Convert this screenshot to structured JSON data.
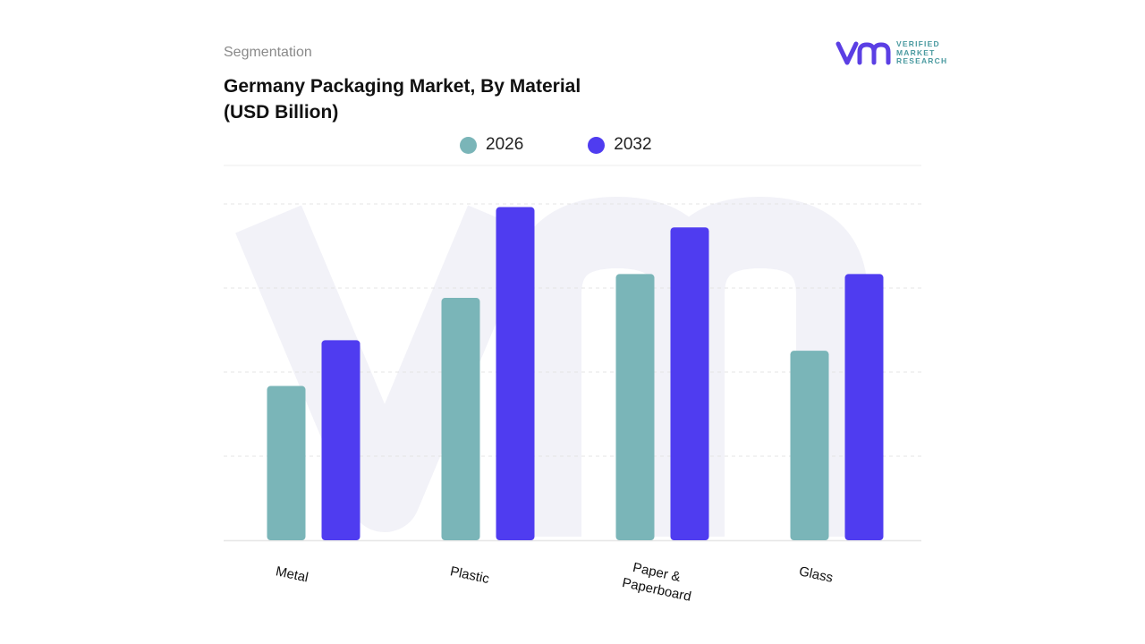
{
  "header": {
    "segment_label": "Segmentation",
    "title_line1": "Germany Packaging Market, By Material",
    "title_line2": "(USD Billion)"
  },
  "logo": {
    "line1": "VERIFIED",
    "line2": "MARKET",
    "line3": "RESEARCH",
    "icon": "vmr-logo-icon",
    "colors": {
      "mark": "#5b3fe4",
      "text": "#4a9aa0"
    }
  },
  "colors": {
    "series_2026": "#7ab5b8",
    "series_2032": "#4f3cf0",
    "grid": "#e4e4e4",
    "watermark": "#f2f2f8"
  },
  "chart_data": {
    "type": "bar",
    "categories": [
      "Metal",
      "Plastic",
      "Paper & Paperboard",
      "Glass"
    ],
    "series": [
      {
        "name": "2026",
        "values": [
          17.5,
          27.5,
          30.2,
          21.5
        ]
      },
      {
        "name": "2032",
        "values": [
          22.7,
          37.8,
          35.5,
          30.2
        ]
      }
    ],
    "title": "Germany Packaging Market, By Material (USD Billion)",
    "xlabel": "",
    "ylabel": "",
    "ylim": [
      0,
      41
    ],
    "grid": true,
    "legend": "top-center"
  }
}
